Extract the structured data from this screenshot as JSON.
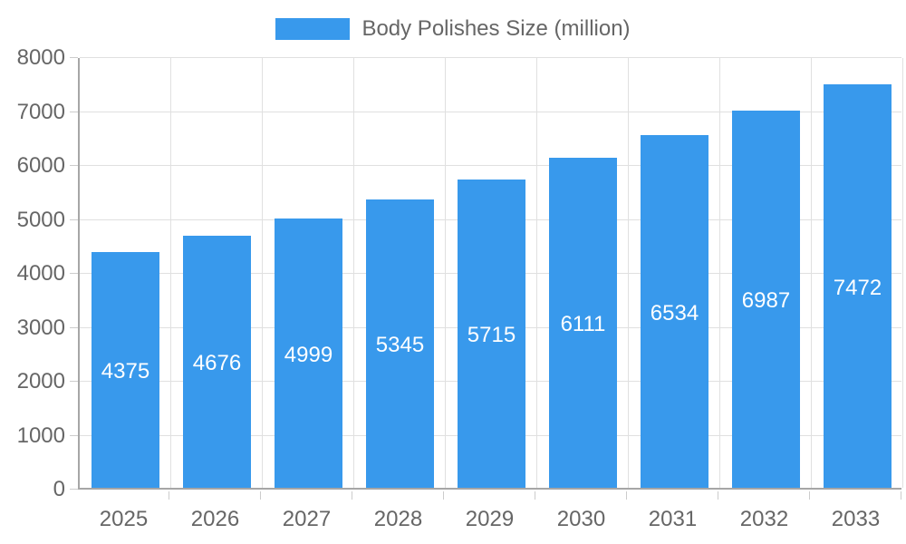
{
  "legend": {
    "label": "Body Polishes Size (million)"
  },
  "colors": {
    "bar": "#3899ec",
    "bar_value_text": "#ffffff",
    "axis_line": "#a6a6a6",
    "gridline": "#e0e0e0",
    "tick": "#cccccc",
    "axis_text": "#666666",
    "legend_text": "#666666",
    "background": "#ffffff"
  },
  "chart_data": {
    "type": "bar",
    "title": "",
    "categories": [
      "2025",
      "2026",
      "2027",
      "2028",
      "2029",
      "2030",
      "2031",
      "2032",
      "2033"
    ],
    "series": [
      {
        "name": "Body Polishes Size (million)",
        "values": [
          4375,
          4676,
          4999,
          5345,
          5715,
          6111,
          6534,
          6987,
          7472
        ]
      }
    ],
    "xlabel": "",
    "ylabel": "",
    "ylim": [
      0,
      8000
    ],
    "y_ticks": [
      0,
      1000,
      2000,
      3000,
      4000,
      5000,
      6000,
      7000,
      8000
    ],
    "grid": true,
    "legend_position": "top-center",
    "value_labels": "inside-center"
  }
}
